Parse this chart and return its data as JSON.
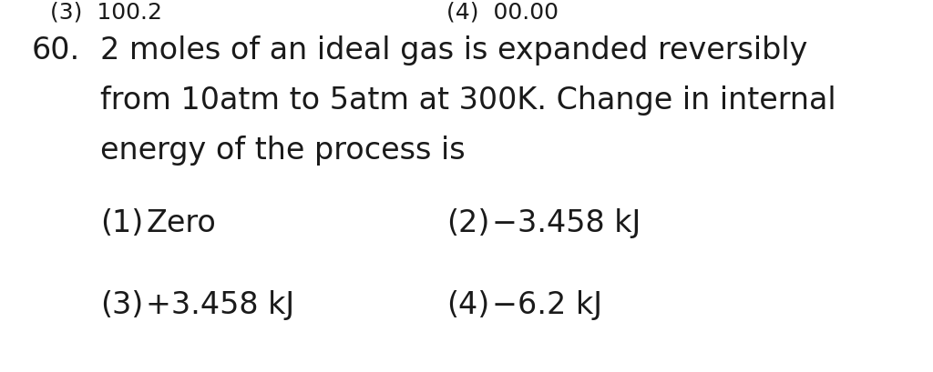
{
  "background_color": "#ffffff",
  "top_left_partial": "(3)  100.2",
  "top_right_partial": "(4)  00.00",
  "question_number": "60.",
  "question_line1": "2 moles of an ideal gas is expanded reversibly",
  "question_line2": "from 10atm to 5atm at 300K. Change in internal",
  "question_line3": "energy of the process is",
  "option1_label": "(1)",
  "option1_text": "Zero",
  "option2_label": "(2)",
  "option2_text": "−3.458 kJ",
  "option3_label": "(3)",
  "option3_text": "+3.458 kJ",
  "option4_label": "(4)",
  "option4_text": "−6.2 kJ",
  "text_color": "#1a1a1a",
  "font_size_top": 18,
  "font_size_question": 24,
  "font_size_options": 24,
  "font_family": "DejaVu Sans"
}
